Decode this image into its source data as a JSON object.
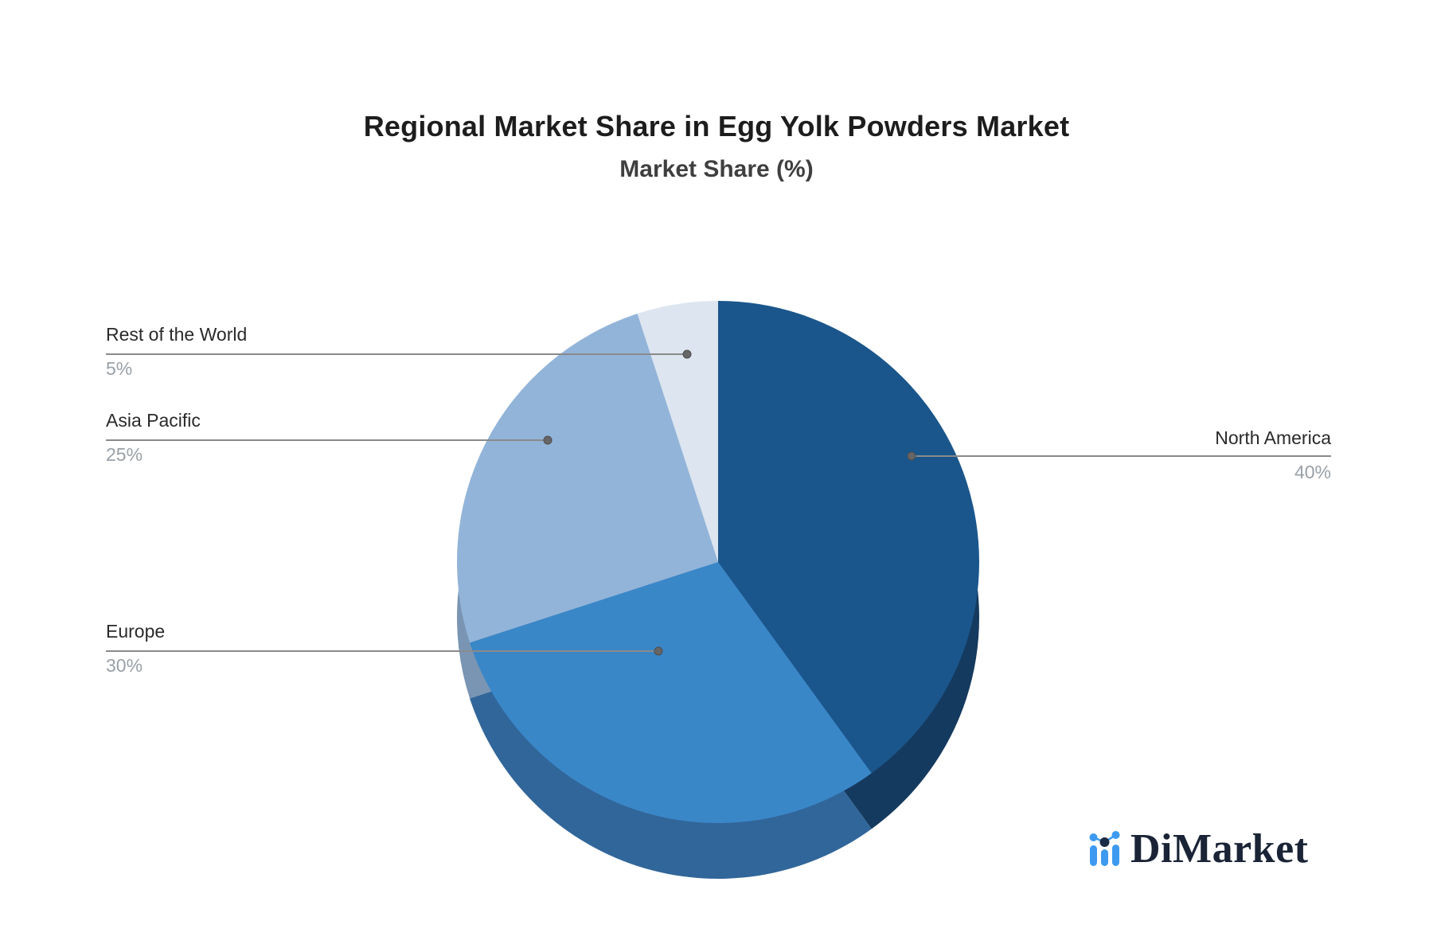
{
  "header": {
    "title": "Regional Market Share in Egg Yolk Powders Market",
    "subtitle": "Market Share (%)"
  },
  "chart_data": {
    "type": "pie",
    "title": "Regional Market Share in Egg Yolk Powders Market",
    "subtitle": "Market Share (%)",
    "unit": "%",
    "categories": [
      "North America",
      "Europe",
      "Asia Pacific",
      "Rest of the World"
    ],
    "values": [
      40,
      30,
      25,
      5
    ],
    "start_angle_deg": 0,
    "direction": "clockwise",
    "style": "3d-pie",
    "slice_colors": [
      "#1A568C",
      "#3A87C8",
      "#92B4D9",
      "#DCE5F0"
    ],
    "slice_side_colors": [
      "#153A5F",
      "#31669A",
      "#7A95B3",
      "#B9C5D6"
    ],
    "leader_line_color": "#8A8A8A",
    "leader_dot_color": "#666666",
    "label_color": "#2A2A2A",
    "value_label_color": "#99A0A7",
    "legend_position": "callout-labels"
  },
  "labels": [
    {
      "name": "North America",
      "value_label": "40%"
    },
    {
      "name": "Europe",
      "value_label": "30%"
    },
    {
      "name": "Asia Pacific",
      "value_label": "25%"
    },
    {
      "name": "Rest of the World",
      "value_label": "5%"
    }
  ],
  "logo": {
    "text": "DiMarket"
  }
}
